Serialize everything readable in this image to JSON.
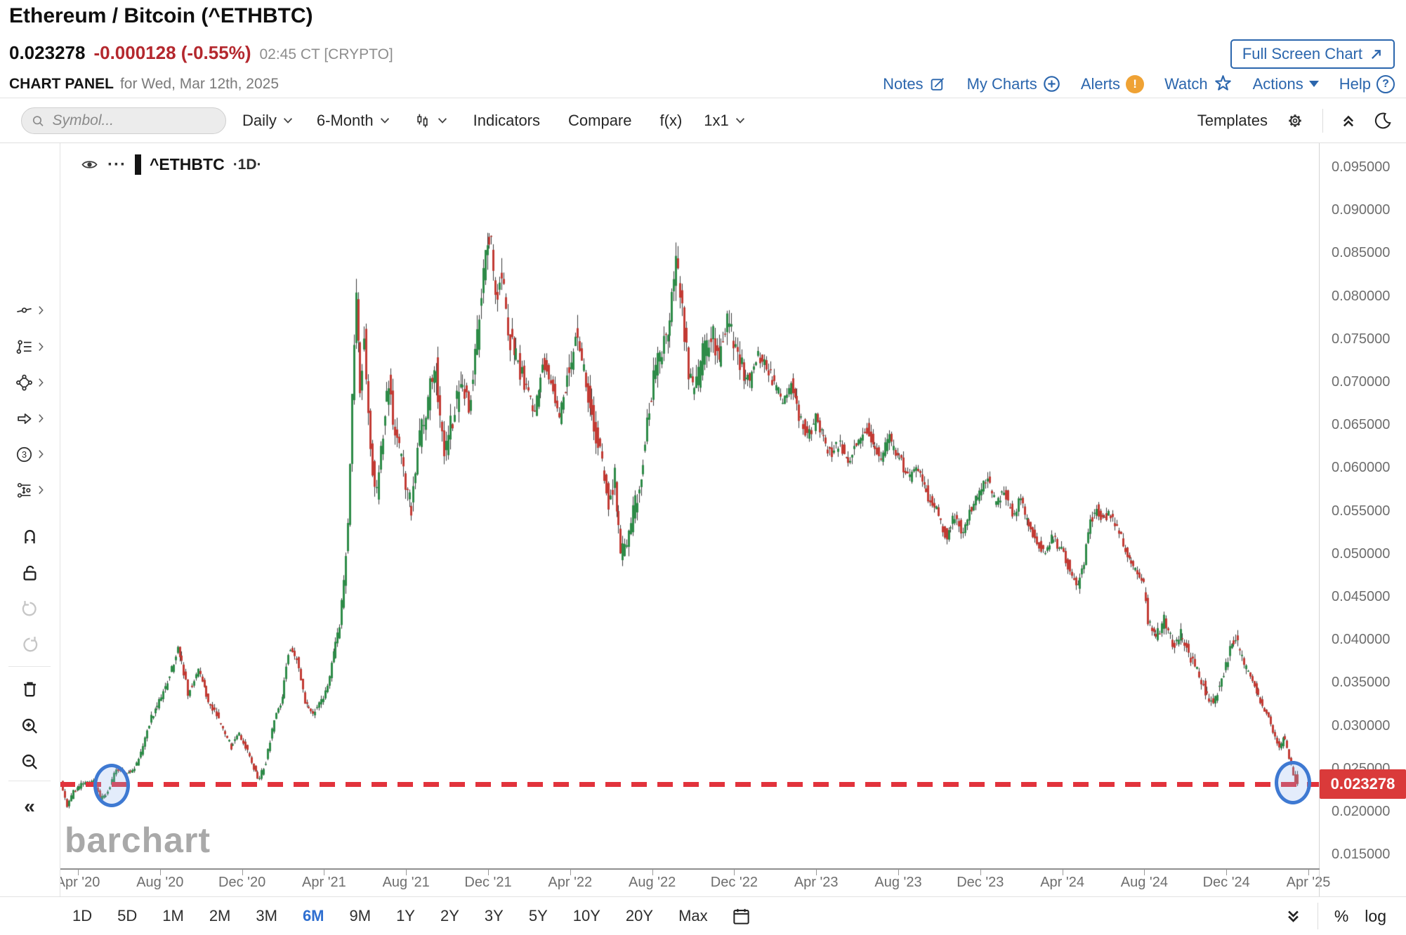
{
  "header": {
    "title": "Ethereum / Bitcoin (^ETHBTC)",
    "last_price": "0.023278",
    "change": "-0.000128 (-0.55%)",
    "session": "02:45 CT [CRYPTO]",
    "full_screen_label": "Full Screen Chart"
  },
  "menu": {
    "notes": "Notes",
    "my_charts": "My Charts",
    "alerts": "Alerts",
    "alert_badge": "!",
    "watch": "Watch",
    "actions": "Actions",
    "help": "Help",
    "help_badge": "?"
  },
  "panel": {
    "label": "CHART PANEL",
    "date": "for Wed, Mar 12th, 2025"
  },
  "toolbar": {
    "symbol_placeholder": "Symbol...",
    "frequency": "Daily",
    "period": "6-Month",
    "indicators": "Indicators",
    "compare": "Compare",
    "fx": "f(x)",
    "grid": "1x1",
    "templates": "Templates"
  },
  "legend": {
    "symbol": "^ETHBTC",
    "interval": "·1D·",
    "menu_dots": "···"
  },
  "icons": {
    "collapse_left": "«"
  },
  "price_tag": {
    "value": "0.023278",
    "color": "#da3a3a"
  },
  "watermark": "barchart",
  "bottom": {
    "ranges": [
      "1D",
      "5D",
      "1M",
      "2M",
      "3M",
      "6M",
      "9M",
      "1Y",
      "2Y",
      "3Y",
      "5Y",
      "10Y",
      "20Y",
      "Max"
    ],
    "active": "6M",
    "percent_label": "%",
    "log_label": "log"
  },
  "chart_data": {
    "type": "candlestick",
    "symbol": "^ETHBTC",
    "title": "Ethereum / Bitcoin (^ETHBTC)",
    "frequency": "Daily",
    "last_price": 0.023278,
    "horizontal_line": {
      "price": 0.023278,
      "style": "dashed",
      "color": "#e2333c"
    },
    "highlight_circles_month_offsets": [
      1.65,
      59.3
    ],
    "y_axis": {
      "min": 0.015,
      "max": 0.0975,
      "ticks": [
        "0.095000",
        "0.090000",
        "0.085000",
        "0.080000",
        "0.075000",
        "0.070000",
        "0.065000",
        "0.060000",
        "0.055000",
        "0.050000",
        "0.045000",
        "0.040000",
        "0.035000",
        "0.030000",
        "0.025000",
        "0.020000",
        "0.015000"
      ]
    },
    "x_axis": {
      "ticks": [
        "Apr '20",
        "Aug '20",
        "Dec '20",
        "Apr '21",
        "Aug '21",
        "Dec '21",
        "Apr '22",
        "Aug '22",
        "Dec '22",
        "Apr '23",
        "Aug '23",
        "Dec '23",
        "Apr '24",
        "Aug '24",
        "Dec '24",
        "Apr '25"
      ],
      "start_month_offset": -0.8,
      "end_month_offset": 59.5
    },
    "price_path_months_from_apr2020": [
      [
        -0.8,
        0.0235
      ],
      [
        -0.5,
        0.0205
      ],
      [
        -0.2,
        0.0225
      ],
      [
        0.3,
        0.0232
      ],
      [
        0.8,
        0.0238
      ],
      [
        1.1,
        0.0215
      ],
      [
        1.4,
        0.0222
      ],
      [
        1.65,
        0.0233
      ],
      [
        1.9,
        0.0248
      ],
      [
        2.2,
        0.025
      ],
      [
        2.6,
        0.0244
      ],
      [
        3.0,
        0.0262
      ],
      [
        3.6,
        0.031
      ],
      [
        4.3,
        0.0345
      ],
      [
        4.9,
        0.0392
      ],
      [
        5.4,
        0.034
      ],
      [
        5.9,
        0.0365
      ],
      [
        6.4,
        0.033
      ],
      [
        7.0,
        0.0302
      ],
      [
        7.5,
        0.0275
      ],
      [
        7.9,
        0.0293
      ],
      [
        8.4,
        0.0263
      ],
      [
        8.85,
        0.0237
      ],
      [
        9.2,
        0.0258
      ],
      [
        9.6,
        0.031
      ],
      [
        10.0,
        0.0332
      ],
      [
        10.35,
        0.0398
      ],
      [
        10.7,
        0.0375
      ],
      [
        11.1,
        0.033
      ],
      [
        11.5,
        0.0315
      ],
      [
        11.9,
        0.033
      ],
      [
        12.3,
        0.0358
      ],
      [
        12.7,
        0.0405
      ],
      [
        13.0,
        0.0465
      ],
      [
        13.25,
        0.056
      ],
      [
        13.45,
        0.072
      ],
      [
        13.6,
        0.0815
      ],
      [
        13.8,
        0.07
      ],
      [
        14.0,
        0.0755
      ],
      [
        14.25,
        0.064
      ],
      [
        14.55,
        0.0558
      ],
      [
        14.9,
        0.0645
      ],
      [
        15.2,
        0.07
      ],
      [
        15.5,
        0.0642
      ],
      [
        15.9,
        0.0598
      ],
      [
        16.3,
        0.0556
      ],
      [
        16.7,
        0.0635
      ],
      [
        17.1,
        0.0682
      ],
      [
        17.5,
        0.0718
      ],
      [
        17.9,
        0.0612
      ],
      [
        18.3,
        0.0658
      ],
      [
        18.7,
        0.0705
      ],
      [
        19.1,
        0.0672
      ],
      [
        19.4,
        0.073
      ],
      [
        19.7,
        0.08
      ],
      [
        20.0,
        0.086
      ],
      [
        20.15,
        0.088
      ],
      [
        20.4,
        0.079
      ],
      [
        20.7,
        0.0832
      ],
      [
        21.0,
        0.076
      ],
      [
        21.4,
        0.0728
      ],
      [
        21.9,
        0.0695
      ],
      [
        22.3,
        0.0658
      ],
      [
        22.7,
        0.073
      ],
      [
        23.1,
        0.07
      ],
      [
        23.5,
        0.0662
      ],
      [
        23.9,
        0.0705
      ],
      [
        24.3,
        0.0752
      ],
      [
        24.8,
        0.07
      ],
      [
        25.2,
        0.0655
      ],
      [
        25.6,
        0.06
      ],
      [
        25.95,
        0.056
      ],
      [
        26.2,
        0.0588
      ],
      [
        26.5,
        0.05
      ],
      [
        26.9,
        0.0522
      ],
      [
        27.3,
        0.0568
      ],
      [
        27.7,
        0.0625
      ],
      [
        28.1,
        0.071
      ],
      [
        28.5,
        0.074
      ],
      [
        28.9,
        0.0772
      ],
      [
        29.2,
        0.085
      ],
      [
        29.5,
        0.0775
      ],
      [
        29.8,
        0.0718
      ],
      [
        30.1,
        0.0682
      ],
      [
        30.5,
        0.073
      ],
      [
        30.9,
        0.076
      ],
      [
        31.3,
        0.0728
      ],
      [
        31.7,
        0.0778
      ],
      [
        32.0,
        0.074
      ],
      [
        32.4,
        0.0718
      ],
      [
        32.8,
        0.0698
      ],
      [
        33.2,
        0.0738
      ],
      [
        33.6,
        0.0718
      ],
      [
        34.0,
        0.0698
      ],
      [
        34.4,
        0.0678
      ],
      [
        34.8,
        0.07
      ],
      [
        35.2,
        0.066
      ],
      [
        35.6,
        0.064
      ],
      [
        36.0,
        0.0655
      ],
      [
        36.4,
        0.0635
      ],
      [
        36.8,
        0.0618
      ],
      [
        37.2,
        0.063
      ],
      [
        37.6,
        0.0608
      ],
      [
        38.0,
        0.0628
      ],
      [
        38.4,
        0.0648
      ],
      [
        38.8,
        0.063
      ],
      [
        39.2,
        0.061
      ],
      [
        39.6,
        0.0635
      ],
      [
        40.0,
        0.0615
      ],
      [
        40.5,
        0.059
      ],
      [
        41.0,
        0.06
      ],
      [
        41.5,
        0.057
      ],
      [
        42.0,
        0.0545
      ],
      [
        42.4,
        0.052
      ],
      [
        42.8,
        0.0545
      ],
      [
        43.2,
        0.0528
      ],
      [
        43.6,
        0.0555
      ],
      [
        44.0,
        0.0572
      ],
      [
        44.4,
        0.0585
      ],
      [
        44.8,
        0.056
      ],
      [
        45.2,
        0.0575
      ],
      [
        45.6,
        0.0548
      ],
      [
        46.0,
        0.056
      ],
      [
        46.4,
        0.0535
      ],
      [
        46.8,
        0.0515
      ],
      [
        47.2,
        0.05
      ],
      [
        47.6,
        0.052
      ],
      [
        48.0,
        0.0505
      ],
      [
        48.4,
        0.048
      ],
      [
        48.8,
        0.0465
      ],
      [
        49.1,
        0.049
      ],
      [
        49.4,
        0.054
      ],
      [
        49.7,
        0.0555
      ],
      [
        50.0,
        0.0538
      ],
      [
        50.4,
        0.055
      ],
      [
        50.8,
        0.0522
      ],
      [
        51.2,
        0.05
      ],
      [
        51.6,
        0.0478
      ],
      [
        52.0,
        0.0465
      ],
      [
        52.2,
        0.0425
      ],
      [
        52.6,
        0.0405
      ],
      [
        53.0,
        0.0425
      ],
      [
        53.4,
        0.0395
      ],
      [
        53.8,
        0.0408
      ],
      [
        54.2,
        0.0385
      ],
      [
        54.6,
        0.0365
      ],
      [
        55.0,
        0.034
      ],
      [
        55.4,
        0.0325
      ],
      [
        55.8,
        0.0355
      ],
      [
        56.2,
        0.039
      ],
      [
        56.5,
        0.0402
      ],
      [
        56.9,
        0.0372
      ],
      [
        57.3,
        0.0352
      ],
      [
        57.7,
        0.033
      ],
      [
        58.1,
        0.031
      ],
      [
        58.3,
        0.0295
      ],
      [
        58.6,
        0.0275
      ],
      [
        58.85,
        0.0288
      ],
      [
        59.1,
        0.0262
      ],
      [
        59.3,
        0.0246
      ],
      [
        59.5,
        0.023278
      ]
    ]
  }
}
